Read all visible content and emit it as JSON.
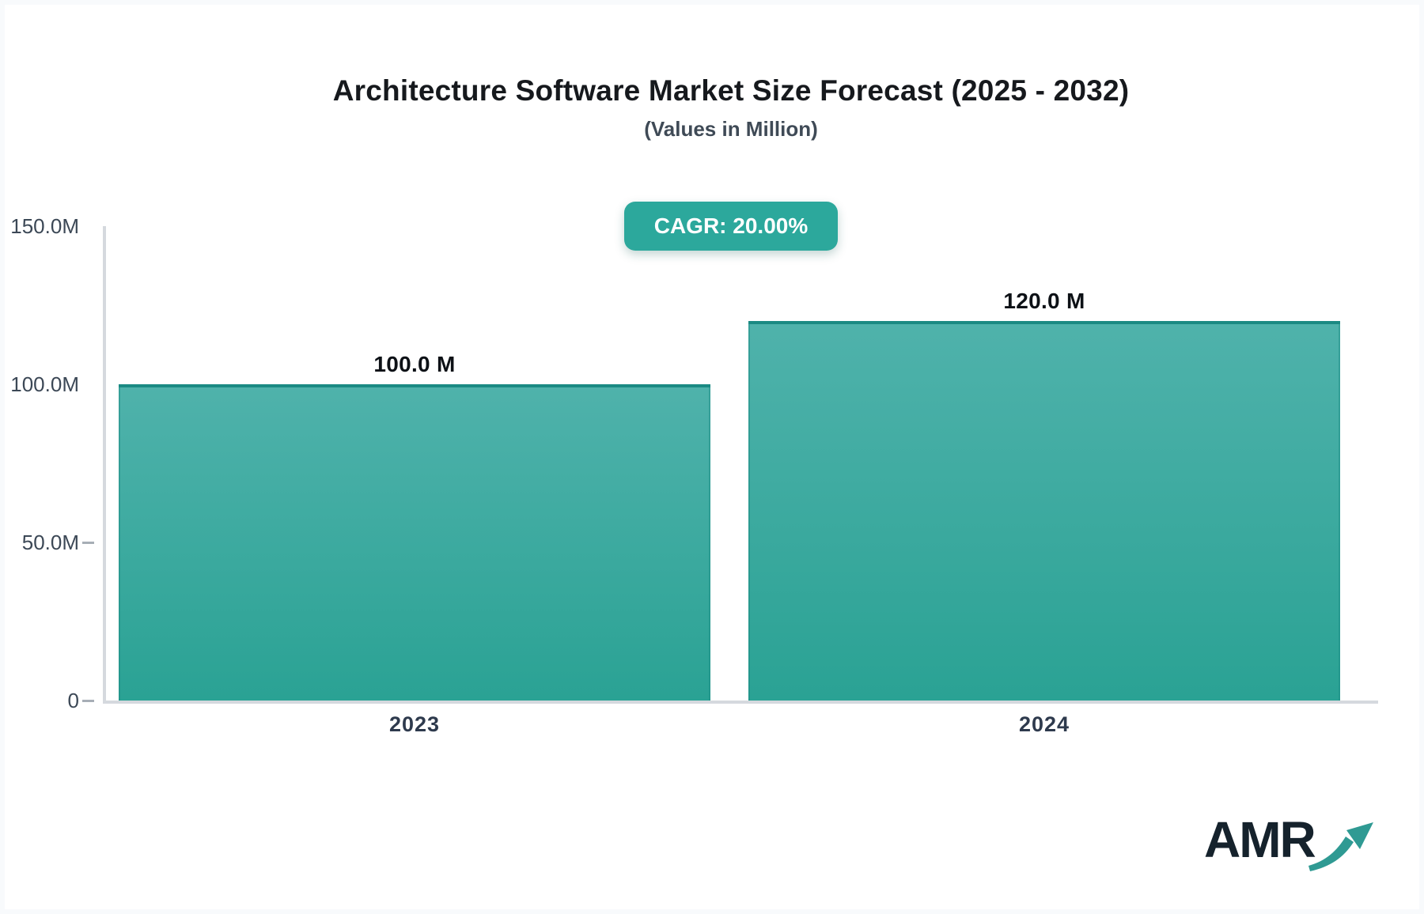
{
  "chart_data": {
    "type": "bar",
    "title": "Architecture Software Market Size Forecast (2025 - 2032)",
    "subtitle": "(Values in Million)",
    "cagr_label": "CAGR: 20.00%",
    "cagr_percent": 20.0,
    "unit": "Million",
    "categories": [
      "2023",
      "2024"
    ],
    "values": [
      100.0,
      120.0
    ],
    "value_labels": [
      "100.0 M",
      "120.0 M"
    ],
    "ylim": [
      0,
      150
    ],
    "ytick_labels": [
      "150.0M",
      "100.0M",
      "50.0M",
      "0"
    ],
    "ytick_values": [
      150,
      100,
      50,
      0
    ],
    "grid": false,
    "legend": false
  },
  "colors": {
    "accent_teal": "#2CA89C",
    "bar_gradient_top": "#4FB2AB",
    "bar_gradient_bottom": "#2AA294",
    "bar_border": "#1B8A83",
    "axis_line": "#D5D9DE",
    "arrow_teal": "#2F9A93"
  },
  "logo": {
    "text": "AMR"
  }
}
